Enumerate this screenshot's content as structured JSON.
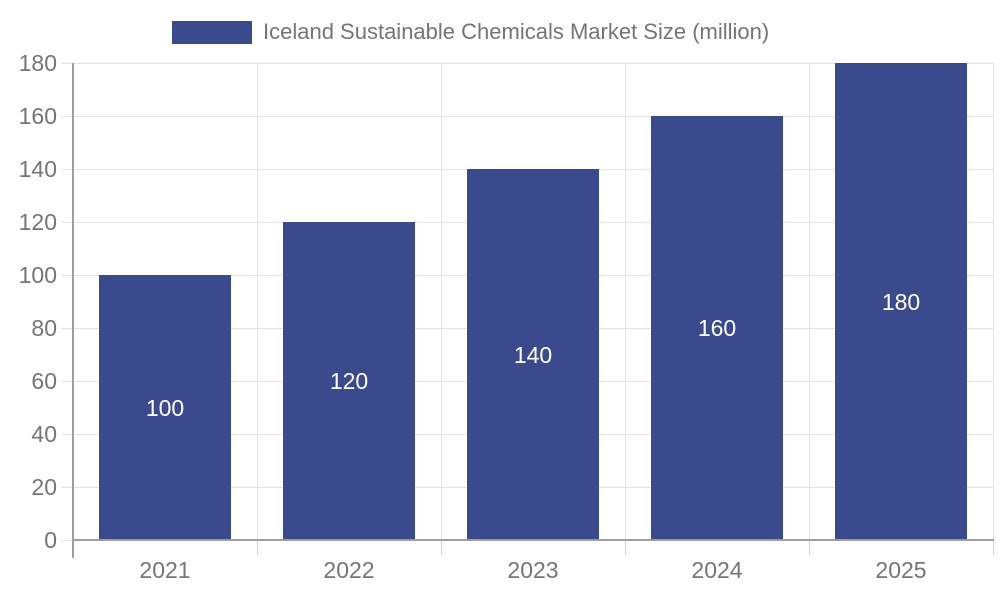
{
  "legend": {
    "label": "Iceland Sustainable Chemicals Market Size (million)"
  },
  "colors": {
    "bar": "#3a4a8c",
    "grid": "#e3e3e3",
    "axis": "#9e9e9e",
    "minor_tick": "#d4d4d4",
    "tick_text": "#757575",
    "bar_label_text": "#ffffff",
    "background": "#ffffff"
  },
  "chart_data": {
    "type": "bar",
    "title": "",
    "xlabel": "",
    "ylabel": "",
    "categories": [
      "2021",
      "2022",
      "2023",
      "2024",
      "2025"
    ],
    "series": [
      {
        "name": "Iceland Sustainable Chemicals Market Size (million)",
        "values": [
          100,
          120,
          140,
          160,
          180
        ]
      }
    ],
    "bar_labels": [
      "100",
      "120",
      "140",
      "160",
      "180"
    ],
    "ylim": [
      0,
      180
    ],
    "yticks": [
      0,
      20,
      40,
      60,
      80,
      100,
      120,
      140,
      160,
      180
    ],
    "grid": true,
    "legend_position": "top-center",
    "bar_label_position": "center"
  }
}
